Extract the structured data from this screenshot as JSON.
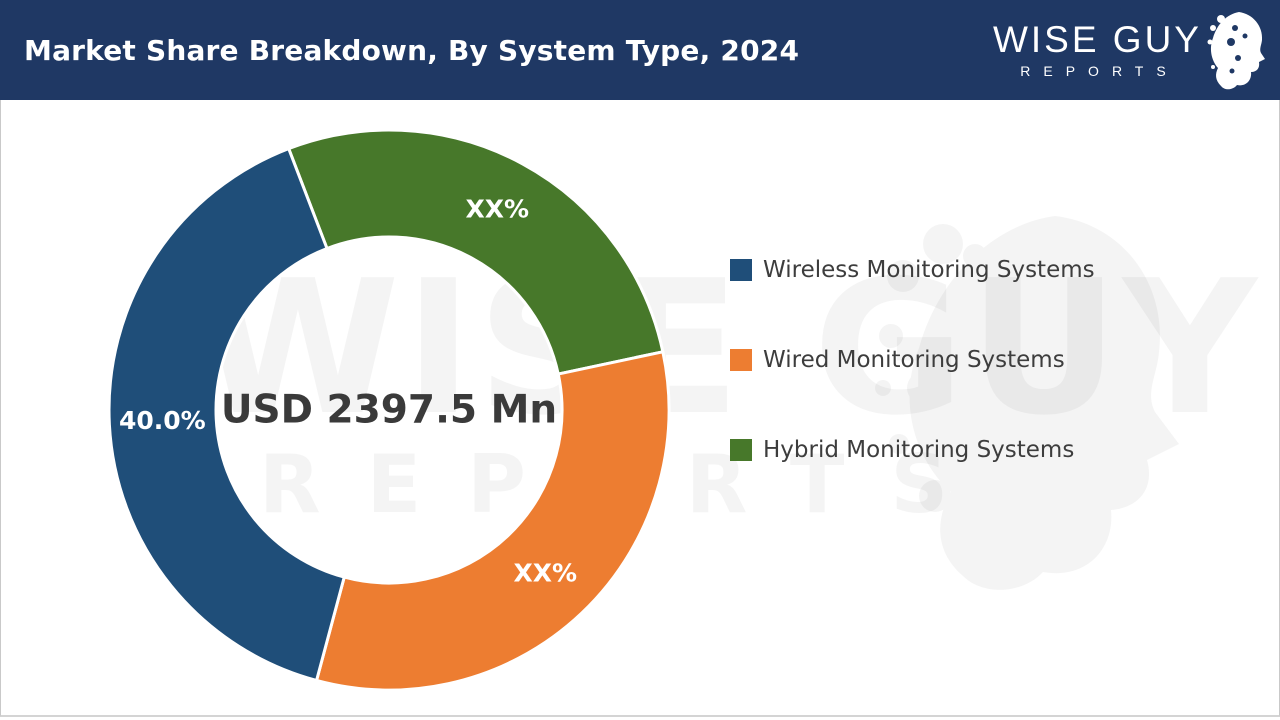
{
  "header": {
    "title": "Market Share Breakdown, By System Type, 2024",
    "logo": {
      "name": "WISE GUY",
      "tagline": "REPORTS"
    }
  },
  "watermark": {
    "line1": "WISE GUY",
    "line2": "REPORTS"
  },
  "colors": {
    "header_bg": "#1f3864",
    "wireless_blue": "#1f4e79",
    "wired_orange": "#ed7d31",
    "hybrid_green": "#47782a",
    "center_text": "#3a3a3a",
    "legend_text": "#3d3d3d",
    "percent_label": "#ffffff"
  },
  "chart_data": {
    "type": "pie",
    "subtype": "donut",
    "title": "Market Share Breakdown, By System Type, 2024",
    "center_label": "USD 2397.5 Mn",
    "start_angle_deg_clockwise_from_top": -21,
    "outer_radius_px": 280,
    "inner_radius_px": 173,
    "label_radius_px": 227,
    "segments": [
      {
        "label": "Hybrid Monitoring Systems",
        "display_label": "XX%",
        "value_pct_est": 27.5,
        "color": "#47782a"
      },
      {
        "label": "Wired Monitoring Systems",
        "display_label": "XX%",
        "value_pct_est": 32.5,
        "color": "#ed7d31"
      },
      {
        "label": "Wireless Monitoring Systems",
        "display_label": "40.0%",
        "value_pct_est": 40.0,
        "color": "#1f4e79"
      }
    ],
    "legend_position": "right",
    "legend": [
      {
        "label": "Wireless Monitoring Systems",
        "color": "#1f4e79"
      },
      {
        "label": "Wired Monitoring Systems",
        "color": "#ed7d31"
      },
      {
        "label": "Hybrid Monitoring Systems",
        "color": "#47782a"
      }
    ]
  }
}
